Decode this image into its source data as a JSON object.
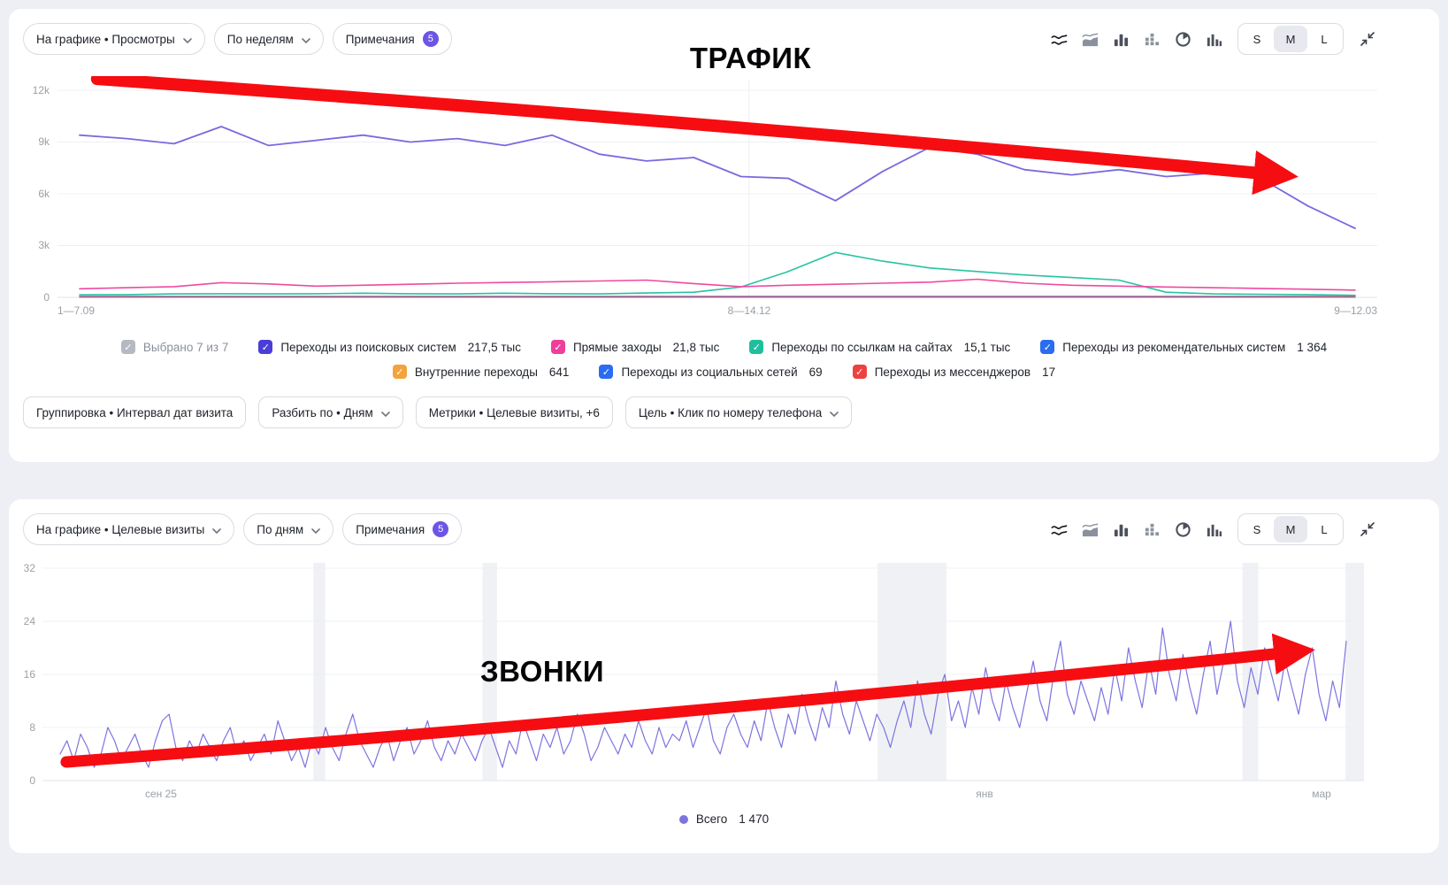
{
  "ui": {
    "sizes": [
      "S",
      "M",
      "L"
    ]
  },
  "traffic": {
    "title": "ТРАФИК",
    "controls": {
      "on_chart": "На графике • Просмотры",
      "period": "По неделям",
      "notes": "Примечания",
      "notes_count": "5"
    },
    "y_ticks": [
      "12k",
      "9k",
      "6k",
      "3k",
      "0"
    ],
    "x_ticks": [
      "1—7.09",
      "8—14.12",
      "9—12.03"
    ],
    "selected_label": "Выбрано 7 из 7",
    "legend": [
      {
        "label": "Переходы из поисковых систем",
        "value": "217,5 тыс",
        "color": "#4a3dd8"
      },
      {
        "label": "Прямые заходы",
        "value": "21,8 тыс",
        "color": "#ef3e9b"
      },
      {
        "label": "Переходы по ссылкам на сайтах",
        "value": "15,1 тыс",
        "color": "#1fbf9d"
      },
      {
        "label": "Переходы из рекомендательных систем",
        "value": "1 364",
        "color": "#2b6cf0"
      },
      {
        "label": "Внутренние переходы",
        "value": "641",
        "color": "#f2a33c"
      },
      {
        "label": "Переходы из социальных сетей",
        "value": "69",
        "color": "#2b6cf0"
      },
      {
        "label": "Переходы из мессенджеров",
        "value": "17",
        "color": "#ef4040"
      }
    ],
    "filters": [
      "Группировка • Интервал дат визита",
      "Разбить по • Дням",
      "Метрики • Целевые визиты, +6",
      "Цель • Клик по номеру телефона"
    ]
  },
  "calls": {
    "title": "ЗВОНКИ",
    "controls": {
      "on_chart": "На графике • Целевые визиты",
      "period": "По дням",
      "notes": "Примечания",
      "notes_count": "5"
    },
    "y_ticks": [
      "32",
      "24",
      "16",
      "8",
      "0"
    ],
    "x_ticks": [
      "сен 25",
      "янв",
      "мар"
    ],
    "legend": {
      "label": "Всего",
      "value": "1 470",
      "color": "#7d74e0"
    }
  },
  "chart_data": [
    {
      "type": "line",
      "title": "ТРАФИК",
      "xlabel": "",
      "ylabel": "",
      "ymax": 12000,
      "ytick_values": [
        0,
        3000,
        6000,
        9000,
        12000
      ],
      "x_tick_labels": [
        "1—7.09",
        "8—14.12",
        "9—12.03"
      ],
      "vlines": [
        0.524
      ],
      "inset": 25,
      "pad_top": 16,
      "pad_bottom": 8,
      "series": [
        {
          "name": "Переходы из рекомендательных систем",
          "color": "#2b6cf0",
          "width": 1.2,
          "values": [
            60,
            60
          ]
        },
        {
          "name": "Внутренние переходы",
          "color": "#f2a33c",
          "width": 1.2,
          "values": [
            25,
            25
          ]
        },
        {
          "name": "Переходы из социальных сетей",
          "color": "#4b79e4",
          "width": 1.2,
          "values": [
            15,
            15
          ]
        },
        {
          "name": "Переходы из мессенджеров",
          "color": "#ef4646",
          "width": 1.2,
          "values": [
            8,
            8
          ]
        },
        {
          "name": "Переходы по ссылкам на сайтах",
          "color": "#27c3a2",
          "width": 1.6,
          "values": [
            150,
            160,
            200,
            210,
            200,
            210,
            240,
            210,
            200,
            240,
            210,
            200,
            250,
            300,
            600,
            1500,
            2600,
            2100,
            1700,
            1500,
            1300,
            1150,
            1000,
            300,
            200,
            180,
            160,
            120
          ]
        },
        {
          "name": "Прямые заходы",
          "color": "#ef4aa0",
          "width": 1.6,
          "values": [
            500,
            560,
            620,
            850,
            780,
            650,
            700,
            760,
            820,
            860,
            900,
            950,
            1000,
            800,
            620,
            700,
            760,
            820,
            880,
            1050,
            820,
            700,
            650,
            600,
            560,
            520,
            470,
            420
          ]
        },
        {
          "name": "Переходы из поисковых систем",
          "color": "#7a6add",
          "width": 1.8,
          "values": [
            9400,
            9200,
            8900,
            9900,
            8800,
            9100,
            9400,
            9000,
            9200,
            8800,
            9400,
            8300,
            7900,
            8100,
            7000,
            6900,
            5600,
            7300,
            8700,
            8300,
            7400,
            7100,
            7400,
            7000,
            7200,
            6900,
            5300,
            4000
          ]
        }
      ],
      "arrow": {
        "x1": 0.03,
        "y1": 0.012,
        "cx": 0.47,
        "cy": 0.19,
        "x2": 0.91,
        "y2": 0.425,
        "width": 14,
        "color": "#f60d12"
      }
    },
    {
      "type": "line",
      "title": "ЗВОНКИ",
      "xlabel": "",
      "ylabel": "",
      "ymax": 32,
      "ytick_values": [
        0,
        8,
        16,
        24,
        32
      ],
      "x_tick_labels": [
        "сен 25",
        "янв",
        "мар"
      ],
      "bands": [
        [
          0.205,
          0.214
        ],
        [
          0.333,
          0.344
        ],
        [
          0.632,
          0.684
        ],
        [
          0.908,
          0.92
        ],
        [
          0.986,
          1.0
        ]
      ],
      "band_color": "#f0f1f5",
      "inset": 20,
      "pad_top": 6,
      "pad_bottom": 4,
      "series": [
        {
          "name": "Всего",
          "color": "#7d74e0",
          "width": 1.2,
          "values": [
            4,
            6,
            3,
            7,
            5,
            2,
            4,
            8,
            6,
            3,
            5,
            7,
            4,
            2,
            6,
            9,
            10,
            5,
            3,
            6,
            4,
            7,
            5,
            3,
            6,
            8,
            4,
            6,
            3,
            5,
            7,
            4,
            9,
            6,
            3,
            5,
            2,
            6,
            4,
            8,
            5,
            3,
            7,
            10,
            6,
            4,
            2,
            5,
            7,
            3,
            6,
            8,
            4,
            6,
            9,
            5,
            3,
            6,
            4,
            7,
            5,
            3,
            6,
            8,
            5,
            2,
            6,
            4,
            9,
            6,
            3,
            7,
            5,
            8,
            4,
            6,
            10,
            7,
            3,
            5,
            8,
            6,
            4,
            7,
            5,
            9,
            6,
            4,
            8,
            5,
            7,
            6,
            9,
            5,
            8,
            11,
            6,
            4,
            8,
            10,
            7,
            5,
            9,
            6,
            12,
            8,
            5,
            10,
            7,
            13,
            9,
            6,
            11,
            8,
            15,
            10,
            7,
            12,
            9,
            6,
            10,
            8,
            5,
            9,
            12,
            8,
            15,
            10,
            7,
            13,
            16,
            9,
            12,
            8,
            14,
            10,
            17,
            12,
            9,
            15,
            11,
            8,
            13,
            18,
            12,
            9,
            16,
            21,
            13,
            10,
            15,
            12,
            9,
            14,
            10,
            17,
            12,
            20,
            15,
            11,
            18,
            13,
            23,
            16,
            12,
            19,
            14,
            10,
            16,
            21,
            13,
            18,
            24,
            15,
            11,
            17,
            13,
            20,
            16,
            12,
            18,
            14,
            10,
            16,
            20,
            13,
            9,
            15,
            11,
            21
          ]
        }
      ],
      "arrow": {
        "x1": 0.018,
        "y1": 0.9,
        "cx": 0.47,
        "cy": 0.7,
        "x2": 0.935,
        "y2": 0.41,
        "width": 13,
        "color": "#f60d12"
      }
    }
  ]
}
